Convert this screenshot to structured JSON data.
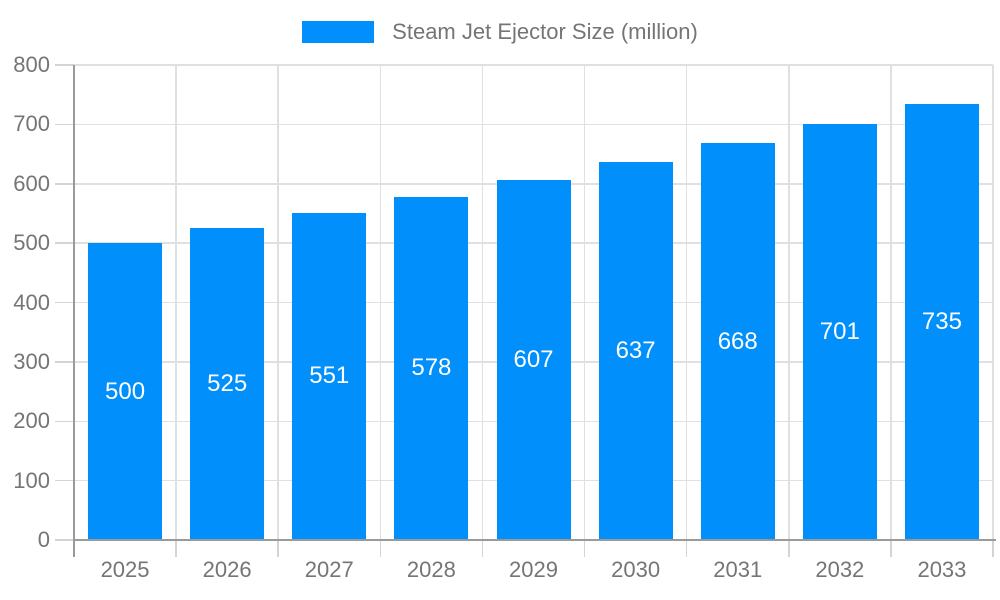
{
  "chart_data": {
    "type": "bar",
    "title": "Steam Jet Ejector Size (million)",
    "legend": [
      "Steam Jet Ejector Size (million)"
    ],
    "legend_position": "top",
    "categories": [
      "2025",
      "2026",
      "2027",
      "2028",
      "2029",
      "2030",
      "2031",
      "2032",
      "2033"
    ],
    "values": [
      500,
      525,
      551,
      578,
      607,
      637,
      668,
      701,
      735
    ],
    "bar_value_labels": [
      "500",
      "525",
      "551",
      "578",
      "607",
      "637",
      "668",
      "701",
      "735"
    ],
    "xlabel": "",
    "ylabel": "",
    "ylim": [
      0,
      800
    ],
    "yticks": [
      0,
      100,
      200,
      300,
      400,
      500,
      600,
      700,
      800
    ],
    "grid": true,
    "colors": {
      "bar": "#008FFB",
      "bar_label": "#ffffff",
      "grid": "#e0e0e0",
      "tick": "#d4d4d4",
      "axis": "#9a9a9a",
      "text": "#757575",
      "background": "#ffffff"
    }
  }
}
